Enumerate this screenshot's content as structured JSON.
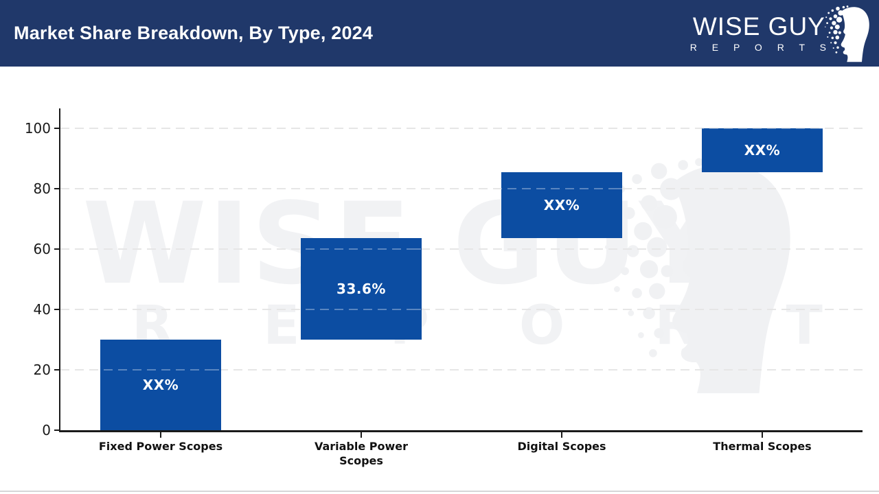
{
  "header": {
    "title": "Market Share Breakdown, By Type, 2024",
    "logo": {
      "wordmark": "WISE GUY",
      "subtext": "R E P O R T S",
      "icon": "dotted-head-profile"
    }
  },
  "watermark": {
    "line1": "WISE GUY",
    "line2": "R E P O R T S",
    "icon": "dotted-head-profile"
  },
  "colors": {
    "header_bg": "#20386a",
    "bar": "#0c4da2",
    "bar_label": "#ffffff",
    "axis": "#1a1a1a",
    "gridline": "#e6e6e6",
    "grid_overlay_on_bar": "rgba(255,255,255,0.32)",
    "watermark": "#f0f1f3",
    "bottom_rule": "#d6d6d8"
  },
  "chart_data": {
    "type": "bar",
    "subtype": "floating-stacked-waterfall",
    "title": "Market Share Breakdown, By Type, 2024",
    "categories": [
      "Fixed Power Scopes",
      "Variable Power Scopes",
      "Digital Scopes",
      "Thermal Scopes"
    ],
    "segments": [
      {
        "category": "Fixed Power Scopes",
        "start": 0,
        "end": 30,
        "size": 30,
        "label": "XX%"
      },
      {
        "category": "Variable Power Scopes",
        "start": 30,
        "end": 63.6,
        "size": 33.6,
        "label": "33.6%"
      },
      {
        "category": "Digital Scopes",
        "start": 63.6,
        "end": 85.5,
        "size": 21.9,
        "label": "XX%"
      },
      {
        "category": "Thermal Scopes",
        "start": 85.5,
        "end": 100,
        "size": 14.5,
        "label": "XX%"
      }
    ],
    "ylim": [
      0,
      100
    ],
    "yticks": [
      0,
      20,
      40,
      60,
      80,
      100
    ],
    "xlabel": "",
    "ylabel": "",
    "grid": "horizontal-dashed-drawn-over-bars",
    "legend": "none",
    "bar_color": "#0c4da2"
  }
}
